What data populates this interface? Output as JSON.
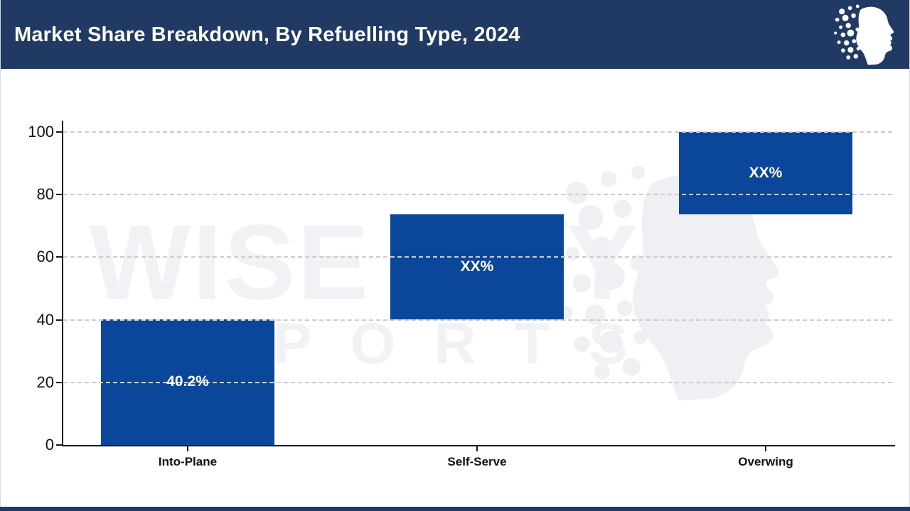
{
  "header": {
    "title": "Market Share Breakdown, By Refuelling Type, 2024",
    "logo": {
      "line1": "WISE GUY",
      "line2": "REPORTS"
    }
  },
  "watermark": {
    "line1": "WISE GUY",
    "line2": "REPORTS"
  },
  "colors": {
    "header_bg": "#213a63",
    "footer_bg": "#213a63",
    "bar": "#0a4699",
    "bar_value_label": "#ffffff",
    "watermark": "#f1f2f5",
    "gridline": "#cccccc",
    "axis": "#1a1a1a"
  },
  "chart_data": {
    "type": "bar",
    "subtype": "waterfall",
    "title": "Market Share Breakdown, By Refuelling Type, 2024",
    "categories": [
      "Into-Plane",
      "Self-Serve",
      "Overwing"
    ],
    "segments": [
      {
        "category": "Into-Plane",
        "label": "40.2%",
        "start": 0,
        "end": 40.2
      },
      {
        "category": "Self-Serve",
        "label": "XX%",
        "start": 40.2,
        "end": 73.7
      },
      {
        "category": "Overwing",
        "label": "XX%",
        "start": 73.7,
        "end": 100
      }
    ],
    "yticks": [
      0,
      20,
      40,
      60,
      80,
      100
    ],
    "ylim": [
      0,
      103.5
    ],
    "xlabel": "",
    "ylabel": "",
    "grid": "horizontal-dashed",
    "legend": "none"
  }
}
